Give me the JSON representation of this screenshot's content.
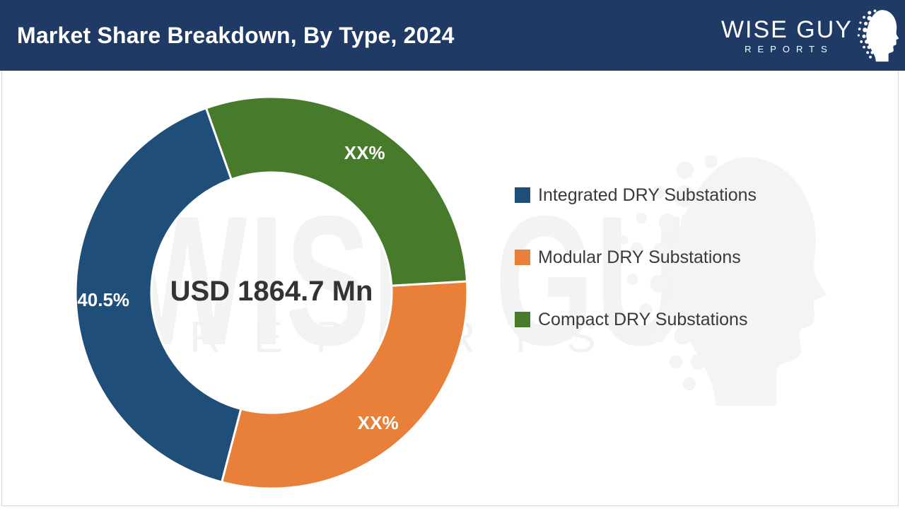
{
  "header": {
    "title": "Market Share Breakdown, By Type, 2024",
    "logo": {
      "line1": "WISE GUY",
      "line2": "REPORTS"
    }
  },
  "chart_data": {
    "type": "pie",
    "subtype": "donut",
    "title": "Market Share Breakdown, By Type, 2024",
    "center_label": "USD 1864.7 Mn",
    "rotation_deg": 194.7,
    "draw_order": [
      0,
      2,
      1
    ],
    "legend_position": "right",
    "segments": [
      {
        "label": "Integrated DRY Substations",
        "pct": 40.5,
        "pct_label": "40.5%",
        "color": "#1f4e79"
      },
      {
        "label": "Modular DRY Substations",
        "pct": 30.0,
        "pct_label": "XX%",
        "color": "#e8803a"
      },
      {
        "label": "Compact DRY Substations",
        "pct": 29.5,
        "pct_label": "XX%",
        "color": "#477a2b"
      }
    ]
  },
  "watermark": {
    "line1": "WISE GUY",
    "line2": "REPORTS"
  },
  "colors": {
    "header_bg": "#203a66",
    "title_text": "#ffffff",
    "center_text": "#333333",
    "legend_text": "#3a3a3a",
    "watermark": "#f3f3f3",
    "frame_border": "#d8d8d8",
    "segment_gap": "#ffffff"
  }
}
